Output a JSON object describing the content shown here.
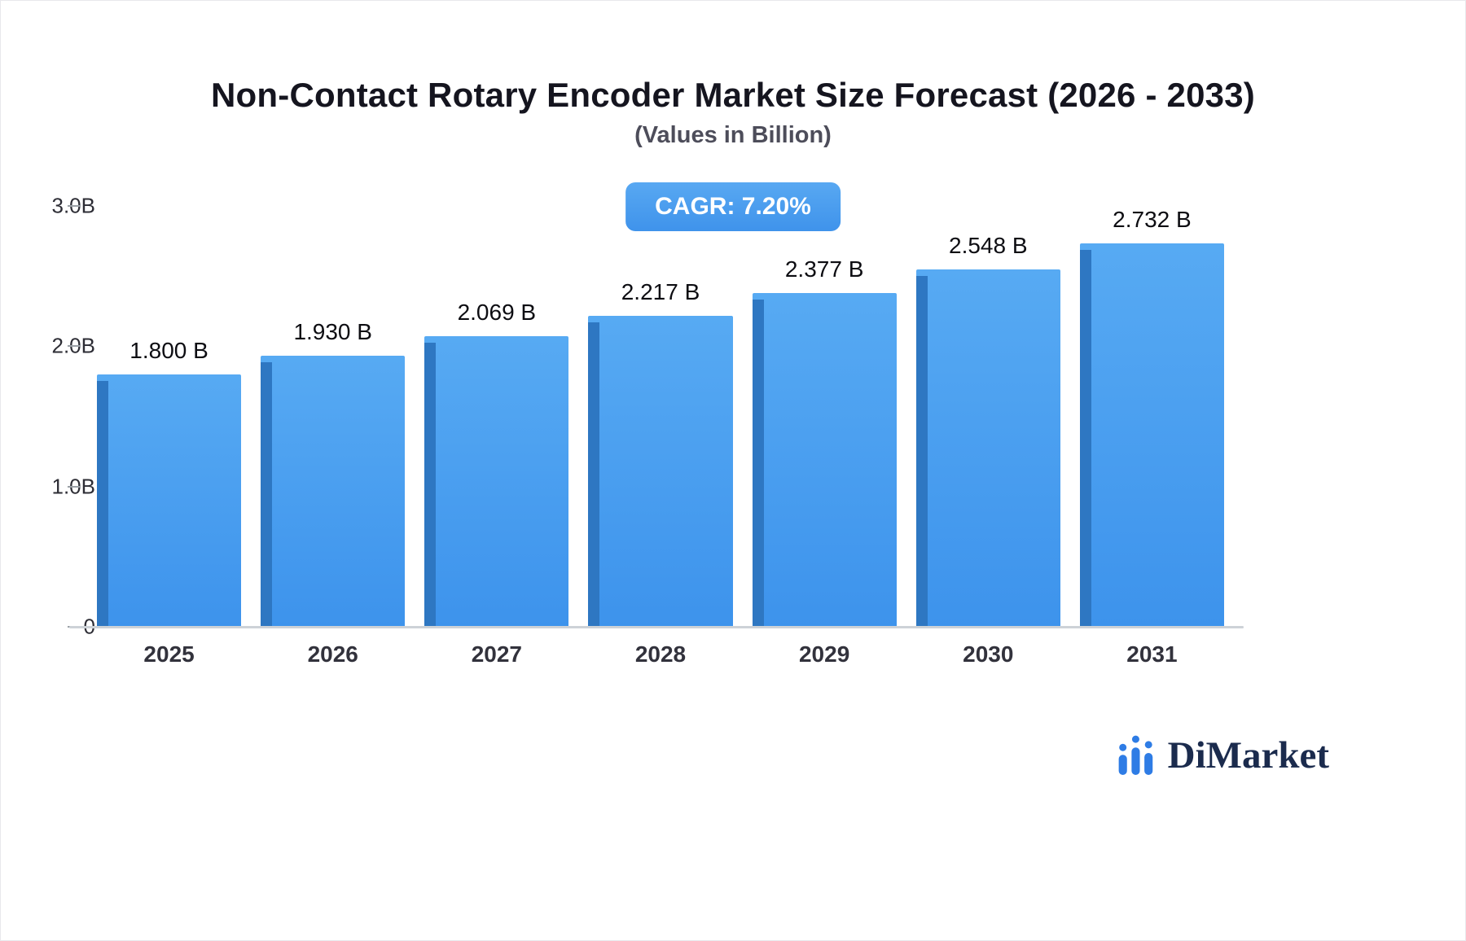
{
  "accent": "#459bef",
  "title": "Non-Contact Rotary Encoder Market Size Forecast (2026 - 2033)",
  "subtitle": "(Values in Billion)",
  "badge": {
    "label": "CAGR: 7.20%"
  },
  "chart_data": {
    "type": "bar",
    "title": "Non-Contact Rotary Encoder Market Size Forecast (2026 - 2033)",
    "subtitle": "(Values in Billion)",
    "categories": [
      "2025",
      "2026",
      "2027",
      "2028",
      "2029",
      "2030",
      "2031"
    ],
    "values": [
      1.8,
      1.93,
      2.069,
      2.217,
      2.377,
      2.548,
      2.732
    ],
    "value_labels": [
      "1.800 B",
      "1.930 B",
      "2.069 B",
      "2.217 B",
      "2.377 B",
      "2.548 B",
      "2.732 B"
    ],
    "xlabel": "",
    "ylabel": "",
    "ylim": [
      0,
      3.0
    ],
    "yticks": [
      {
        "label": "3.0B",
        "value": 3.0
      },
      {
        "label": "2.0B",
        "value": 2.0
      },
      {
        "label": "1.0B",
        "value": 1.0
      },
      {
        "label": "0",
        "value": 0.0
      }
    ],
    "grid": false,
    "legend": false,
    "annotation": "CAGR: 7.20%",
    "bar_color_top": "#57aaf3",
    "bar_color_bottom": "#3d93ec",
    "bar_side_color": "#2e77c2"
  },
  "logo": {
    "text": "DiMarket",
    "icon": "bar-chart-icon",
    "icon_color": "#2e7ce5",
    "text_color": "#1b2b4d"
  }
}
